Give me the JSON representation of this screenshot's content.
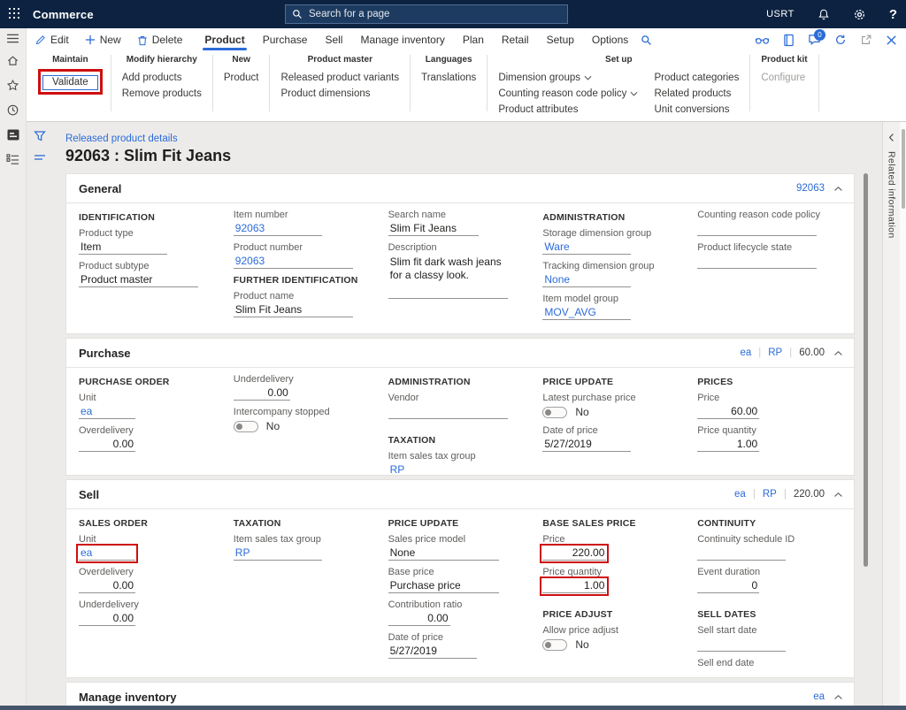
{
  "colors": {
    "topbar_bg": "#0c2240",
    "accent_blue": "#2b6bd8",
    "annotation_red": "#cf0f0f",
    "page_bg": "#edebe9",
    "bottom_bar": "#45566b"
  },
  "topbar": {
    "app_title": "Commerce",
    "search_placeholder": "Search for a page",
    "user": "USRT"
  },
  "action_pane": {
    "commands": [
      {
        "label": "Edit",
        "icon": "edit-pencil"
      },
      {
        "label": "New",
        "icon": "add-plus"
      },
      {
        "label": "Delete",
        "icon": "delete-trash"
      }
    ],
    "tabs": [
      {
        "label": "Product",
        "selected": true
      },
      {
        "label": "Purchase",
        "selected": false
      },
      {
        "label": "Sell",
        "selected": false
      },
      {
        "label": "Manage inventory",
        "selected": false
      },
      {
        "label": "Plan",
        "selected": false
      },
      {
        "label": "Retail",
        "selected": false
      },
      {
        "label": "Setup",
        "selected": false
      },
      {
        "label": "Options",
        "selected": false
      }
    ],
    "badge_count": "0"
  },
  "ribbon": {
    "groups": [
      {
        "label": "Maintain",
        "cols": [
          [
            {
              "text": "Validate",
              "boxed": true,
              "annot": true
            }
          ]
        ]
      },
      {
        "label": "Modify hierarchy",
        "cols": [
          [
            {
              "text": "Add products"
            },
            {
              "text": "Remove products"
            }
          ]
        ]
      },
      {
        "label": "New",
        "cols": [
          [
            {
              "text": "Product"
            }
          ]
        ]
      },
      {
        "label": "Product master",
        "cols": [
          [
            {
              "text": "Released product variants"
            },
            {
              "text": "Product dimensions"
            }
          ]
        ]
      },
      {
        "label": "Languages",
        "cols": [
          [
            {
              "text": "Translations"
            }
          ]
        ]
      },
      {
        "label": "Set up",
        "cols": [
          [
            {
              "text": "Dimension groups",
              "chev": true
            },
            {
              "text": "Counting reason code policy",
              "chev": true
            },
            {
              "text": "Product attributes"
            }
          ],
          [
            {
              "text": "Product categories"
            },
            {
              "text": "Related products"
            },
            {
              "text": "Unit conversions"
            }
          ]
        ]
      },
      {
        "label": "Product kit",
        "cols": [
          [
            {
              "text": "Configure",
              "disabled": true
            }
          ]
        ]
      }
    ]
  },
  "page": {
    "breadcrumb": "Released product details",
    "title": "92063 : Slim Fit Jeans"
  },
  "sections": [
    {
      "title": "General",
      "summary": [
        {
          "text": "92063",
          "link": true
        }
      ],
      "columns": [
        [
          {
            "t": "grp",
            "text": "IDENTIFICATION"
          },
          {
            "t": "fld",
            "label": "Product type",
            "value": "Item",
            "w": 100
          },
          {
            "t": "fld",
            "label": "Product subtype",
            "value": "Product master",
            "w": 135
          }
        ],
        [
          {
            "t": "fld",
            "label": "Item number",
            "value": "92063",
            "link": true,
            "w": 100
          },
          {
            "t": "fld",
            "label": "Product number",
            "value": "92063",
            "link": true,
            "w": 135
          },
          {
            "t": "grp",
            "text": "FURTHER IDENTIFICATION"
          },
          {
            "t": "fld",
            "label": "Product name",
            "value": "Slim Fit Jeans",
            "w": 135
          }
        ],
        [
          {
            "t": "fld",
            "label": "Search name",
            "value": "Slim Fit Jeans",
            "w": 102
          },
          {
            "t": "fld",
            "label": "Description",
            "value": "Slim fit dark wash jeans for a classy look.",
            "multiline": true,
            "w": 135
          }
        ],
        [
          {
            "t": "grp",
            "text": "ADMINISTRATION"
          },
          {
            "t": "fld",
            "label": "Storage dimension group",
            "value": "Ware",
            "link": true,
            "w": 100
          },
          {
            "t": "fld",
            "label": "Tracking dimension group",
            "value": "None",
            "link": true,
            "w": 100
          },
          {
            "t": "fld",
            "label": "Item model group",
            "value": "MOV_AVG",
            "link": true,
            "w": 100
          }
        ],
        [
          {
            "t": "fld",
            "label": "Counting reason code policy",
            "value": "",
            "w": 135
          },
          {
            "t": "fld",
            "label": "Product lifecycle state",
            "value": "",
            "w": 135
          }
        ]
      ]
    },
    {
      "title": "Purchase",
      "summary": [
        {
          "text": "ea",
          "link": true
        },
        {
          "text": "RP",
          "link": true
        },
        {
          "text": "60.00",
          "link": false
        }
      ],
      "columns": [
        [
          {
            "t": "grp",
            "text": "PURCHASE ORDER"
          },
          {
            "t": "fld",
            "label": "Unit",
            "value": "ea",
            "link": true,
            "w": 64
          },
          {
            "t": "fld",
            "label": "Overdelivery",
            "value": "0.00",
            "num": true,
            "w": 64
          }
        ],
        [
          {
            "t": "fld",
            "label": "Underdelivery",
            "value": "0.00",
            "num": true,
            "w": 64
          },
          {
            "t": "tgl",
            "label": "Intercompany stopped",
            "value": "No"
          }
        ],
        [
          {
            "t": "grp",
            "text": "ADMINISTRATION"
          },
          {
            "t": "fld",
            "label": "Vendor",
            "value": "",
            "w": 135
          },
          {
            "t": "sp"
          },
          {
            "t": "grp",
            "text": "TAXATION"
          },
          {
            "t": "fld",
            "label": "Item sales tax group",
            "value": "RP",
            "link": true,
            "w": 100
          }
        ],
        [
          {
            "t": "grp",
            "text": "PRICE UPDATE"
          },
          {
            "t": "tgl",
            "label": "Latest purchase price",
            "value": "No"
          },
          {
            "t": "fld",
            "label": "Date of price",
            "value": "5/27/2019",
            "w": 100
          }
        ],
        [
          {
            "t": "grp",
            "text": "PRICES"
          },
          {
            "t": "fld",
            "label": "Price",
            "value": "60.00",
            "num": true,
            "w": 70
          },
          {
            "t": "fld",
            "label": "Price quantity",
            "value": "1.00",
            "num": true,
            "w": 70
          }
        ]
      ]
    },
    {
      "title": "Sell",
      "summary": [
        {
          "text": "ea",
          "link": true
        },
        {
          "text": "RP",
          "link": true
        },
        {
          "text": "220.00",
          "link": false
        }
      ],
      "columns": [
        [
          {
            "t": "grp",
            "text": "SALES ORDER"
          },
          {
            "t": "fld",
            "label": "Unit",
            "value": "ea",
            "link": true,
            "annot": true,
            "w": 64
          },
          {
            "t": "fld",
            "label": "Overdelivery",
            "value": "0.00",
            "num": true,
            "w": 64
          },
          {
            "t": "fld",
            "label": "Underdelivery",
            "value": "0.00",
            "num": true,
            "w": 64
          }
        ],
        [
          {
            "t": "grp",
            "text": "TAXATION"
          },
          {
            "t": "fld",
            "label": "Item sales tax group",
            "value": "RP",
            "link": true,
            "w": 100
          }
        ],
        [
          {
            "t": "grp",
            "text": "PRICE UPDATE"
          },
          {
            "t": "fld",
            "label": "Sales price model",
            "value": "None",
            "w": 125
          },
          {
            "t": "fld",
            "label": "Base price",
            "value": "Purchase price",
            "w": 125
          },
          {
            "t": "fld",
            "label": "Contribution ratio",
            "value": "0.00",
            "num": true,
            "w": 70
          },
          {
            "t": "fld",
            "label": "Date of price",
            "value": "5/27/2019",
            "w": 100
          }
        ],
        [
          {
            "t": "grp",
            "text": "BASE SALES PRICE"
          },
          {
            "t": "fld",
            "label": "Price",
            "value": "220.00",
            "num": true,
            "annot": true,
            "w": 72
          },
          {
            "t": "fld",
            "label": "Price quantity",
            "value": "1.00",
            "num": true,
            "annot": true,
            "w": 72
          },
          {
            "t": "sp"
          },
          {
            "t": "grp",
            "text": "PRICE ADJUST"
          },
          {
            "t": "tgl",
            "label": "Allow price adjust",
            "value": "No"
          }
        ],
        [
          {
            "t": "grp",
            "text": "CONTINUITY"
          },
          {
            "t": "fld",
            "label": "Continuity schedule ID",
            "value": "",
            "w": 100
          },
          {
            "t": "fld",
            "label": "Event duration",
            "value": "0",
            "num": true,
            "w": 70
          },
          {
            "t": "sp"
          },
          {
            "t": "grp",
            "text": "SELL DATES"
          },
          {
            "t": "fld",
            "label": "Sell start date",
            "value": "",
            "w": 100
          },
          {
            "t": "fld",
            "label": "Sell end date",
            "value": "",
            "w": 100
          }
        ]
      ]
    },
    {
      "title": "Manage inventory",
      "summary": [
        {
          "text": "ea",
          "link": true
        }
      ],
      "columns": []
    }
  ],
  "related_panel": {
    "label": "Related information"
  }
}
